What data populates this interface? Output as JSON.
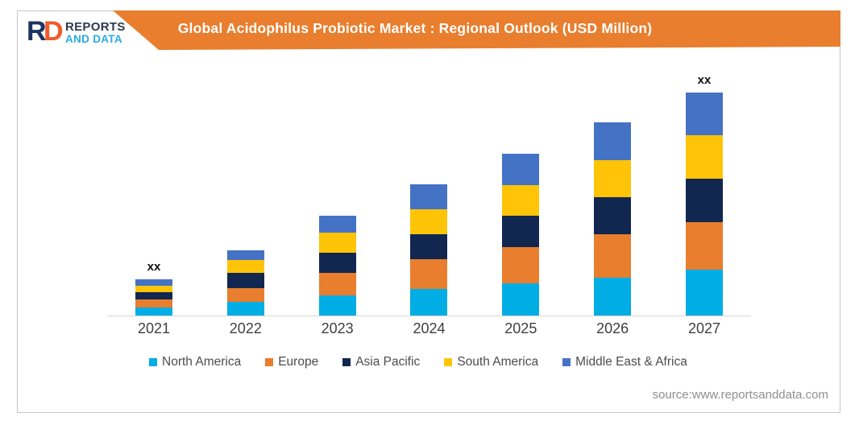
{
  "banner": {
    "title": "Global Acidophilus Probiotic Market : Regional Outlook (USD Million)",
    "color": "#e87e2e"
  },
  "logo": {
    "mark_r": "R",
    "mark_d": "D",
    "line1": "REPORTS",
    "line2": "AND DATA"
  },
  "footer": {
    "source": "source:www.reportsanddata.com"
  },
  "chart_data": {
    "type": "bar",
    "stacked": true,
    "title": "Global Acidophilus Probiotic Market : Regional Outlook (USD Million)",
    "xlabel": "",
    "ylabel": "",
    "units": "USD Million (actual values masked, shown as 'xx')",
    "grid": false,
    "legend_position": "bottom",
    "categories": [
      "2021",
      "2022",
      "2023",
      "2024",
      "2025",
      "2026",
      "2027"
    ],
    "series": [
      {
        "name": "North America",
        "color": "#00ade4",
        "values": [
          10,
          17,
          25,
          33,
          40,
          47,
          57
        ]
      },
      {
        "name": "Europe",
        "color": "#e87e2e",
        "values": [
          10,
          17,
          28,
          37,
          45,
          54,
          59
        ]
      },
      {
        "name": "Asia Pacific",
        "color": "#112750",
        "values": [
          9,
          19,
          25,
          31,
          39,
          46,
          54
        ]
      },
      {
        "name": "South America",
        "color": "#ffc408",
        "values": [
          8,
          16,
          25,
          31,
          38,
          46,
          54
        ]
      },
      {
        "name": "Middle East & Africa",
        "color": "#4472c4",
        "values": [
          8,
          12,
          21,
          31,
          39,
          47,
          53
        ]
      }
    ],
    "totals_relative": [
      45,
      81,
      124,
      163,
      201,
      240,
      277
    ],
    "value_labels": {
      "text": "xx",
      "shown_on": [
        "2021",
        "2027"
      ]
    }
  }
}
